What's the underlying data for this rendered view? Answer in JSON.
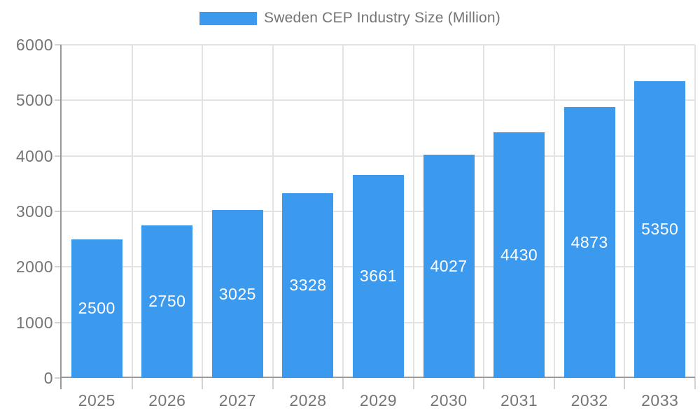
{
  "legend": {
    "label": "Sweden CEP Industry Size (Million)"
  },
  "chart_data": {
    "type": "bar",
    "title": "Sweden CEP Industry Size (Million)",
    "categories": [
      "2025",
      "2026",
      "2027",
      "2028",
      "2029",
      "2030",
      "2031",
      "2032",
      "2033"
    ],
    "series": [
      {
        "name": "Sweden CEP Industry Size (Million)",
        "values": [
          2500,
          2750,
          3025,
          3328,
          3661,
          4027,
          4430,
          4873,
          5350
        ]
      }
    ],
    "xlabel": "",
    "ylabel": "",
    "ylim": [
      0,
      6000
    ],
    "y_ticks": [
      0,
      1000,
      2000,
      3000,
      4000,
      5000,
      6000
    ],
    "grid": true,
    "legend_position": "top-center",
    "value_labels": "inside-center",
    "colors": {
      "bar": "#3B99EE",
      "axis": "#9A9A9A",
      "gridline": "#E3E3E3",
      "tick": "#D2D2D2",
      "label_text": "#757575",
      "value_label_text": "#FFFFFF"
    }
  }
}
